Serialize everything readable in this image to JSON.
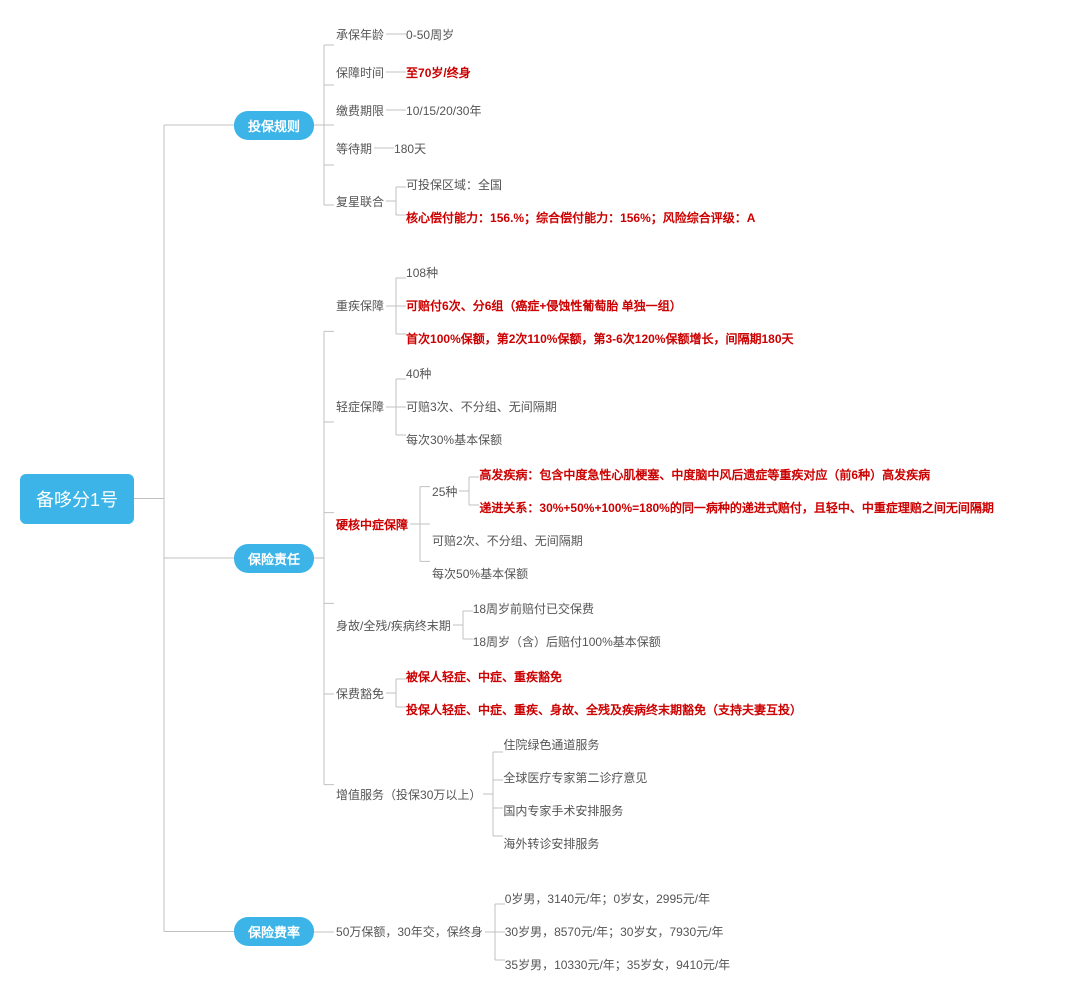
{
  "root": "备哆分1号",
  "colors": {
    "accent": "#3cb4e7",
    "text": "#555555",
    "highlight": "#cc0000",
    "line": "#c0c0c0",
    "background": "#ffffff"
  },
  "typography": {
    "root_fontsize": 18,
    "pill_fontsize": 13,
    "body_fontsize": 12
  },
  "structure_type": "tree",
  "branches": [
    {
      "label": "投保规则",
      "children": [
        {
          "label": "承保年龄",
          "leaves": [
            {
              "text": "0-50周岁"
            }
          ]
        },
        {
          "label": "保障时间",
          "leaves": [
            {
              "text": "至70岁/终身",
              "highlight": true
            }
          ]
        },
        {
          "label": "缴费期限",
          "leaves": [
            {
              "text": "10/15/20/30年"
            }
          ]
        },
        {
          "label": "等待期",
          "leaves": [
            {
              "text": "180天"
            }
          ]
        },
        {
          "label": "复星联合",
          "leaves": [
            {
              "text": "可投保区域：全国"
            },
            {
              "text": "核心偿付能力：156.%；综合偿付能力：156%；风险综合评级：A",
              "highlight": true
            }
          ]
        }
      ]
    },
    {
      "label": "保险责任",
      "children": [
        {
          "label": "重疾保障",
          "leaves": [
            {
              "text": "108种"
            },
            {
              "text": "可赔付6次、分6组（癌症+侵蚀性葡萄胎 单独一组）",
              "highlight": true
            },
            {
              "text": "首次100%保额，第2次110%保额，第3-6次120%保额增长，间隔期180天",
              "highlight": true
            }
          ]
        },
        {
          "label": "轻症保障",
          "leaves": [
            {
              "text": "40种"
            },
            {
              "text": "可赔3次、不分组、无间隔期"
            },
            {
              "text": "每次30%基本保额"
            }
          ]
        },
        {
          "label": "硬核中症保障",
          "highlight": true,
          "children": [
            {
              "label": "25种",
              "leaves": [
                {
                  "text": "高发疾病：包含中度急性心肌梗塞、中度脑中风后遗症等重疾对应（前6种）高发疾病",
                  "highlight": true
                },
                {
                  "text": "递进关系：30%+50%+100%=180%的同一病种的递进式赔付，且轻中、中重症理赔之间无间隔期",
                  "highlight": true
                }
              ]
            },
            {
              "label": "可赔2次、不分组、无间隔期"
            },
            {
              "label": "每次50%基本保额"
            }
          ]
        },
        {
          "label": "身故/全残/疾病终末期",
          "leaves": [
            {
              "text": "18周岁前赔付已交保费"
            },
            {
              "text": "18周岁（含）后赔付100%基本保额"
            }
          ]
        },
        {
          "label": "保费豁免",
          "leaves": [
            {
              "text": "被保人轻症、中症、重疾豁免",
              "highlight": true
            },
            {
              "text": "投保人轻症、中症、重疾、身故、全残及疾病终末期豁免（支持夫妻互投）",
              "highlight": true
            }
          ]
        },
        {
          "label": "增值服务（投保30万以上）",
          "leaves": [
            {
              "text": "住院绿色通道服务"
            },
            {
              "text": "全球医疗专家第二诊疗意见"
            },
            {
              "text": "国内专家手术安排服务"
            },
            {
              "text": "海外转诊安排服务"
            }
          ]
        }
      ]
    },
    {
      "label": "保险费率",
      "children": [
        {
          "label": "50万保额，30年交，保终身",
          "leaves": [
            {
              "text": "0岁男，3140元/年；0岁女，2995元/年"
            },
            {
              "text": "30岁男，8570元/年；30岁女，7930元/年"
            },
            {
              "text": "35岁男，10330元/年；35岁女，9410元/年"
            }
          ]
        }
      ]
    }
  ]
}
